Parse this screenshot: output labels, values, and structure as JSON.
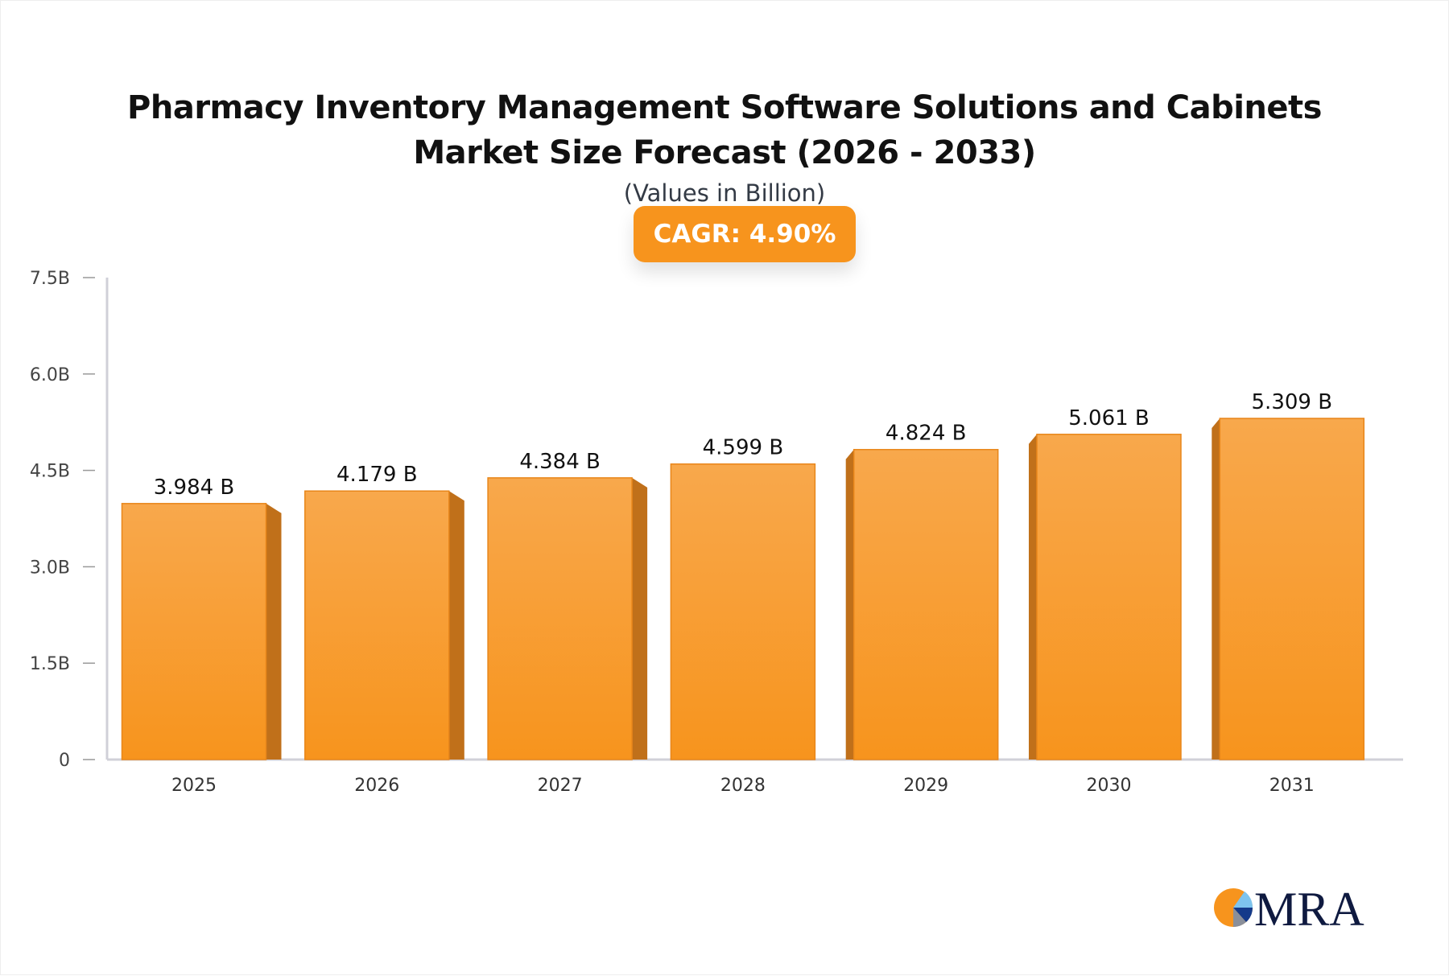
{
  "chart_data": {
    "type": "bar",
    "title": "Pharmacy Inventory Management Software Solutions and Cabinets Market Size Forecast (2026 - 2033)",
    "subtitle": "(Values in Billion)",
    "badge": "CAGR: 4.90%",
    "categories": [
      "2025",
      "2026",
      "2027",
      "2028",
      "2029",
      "2030",
      "2031"
    ],
    "values": [
      3.984,
      4.179,
      4.384,
      4.599,
      4.824,
      5.061,
      5.309
    ],
    "data_labels": [
      "3.984 B",
      "4.179 B",
      "4.384 B",
      "4.599 B",
      "4.824 B",
      "5.061 B",
      "5.309 B"
    ],
    "y_ticks": [
      {
        "v": 0,
        "label": "0"
      },
      {
        "v": 1.5,
        "label": "1.5B"
      },
      {
        "v": 3.0,
        "label": "3.0B"
      },
      {
        "v": 4.5,
        "label": "4.5B"
      },
      {
        "v": 6.0,
        "label": "6.0B"
      },
      {
        "v": 7.5,
        "label": "7.5B"
      }
    ],
    "ylim": [
      0,
      7.5
    ],
    "grid": false,
    "legend": "none",
    "colors": {
      "bar_top": "#f8a84c",
      "bar_bottom": "#f7941d",
      "bar_side": "#c0701a",
      "axis": "#d0d0d8"
    }
  },
  "logo": {
    "text": "MRA"
  }
}
